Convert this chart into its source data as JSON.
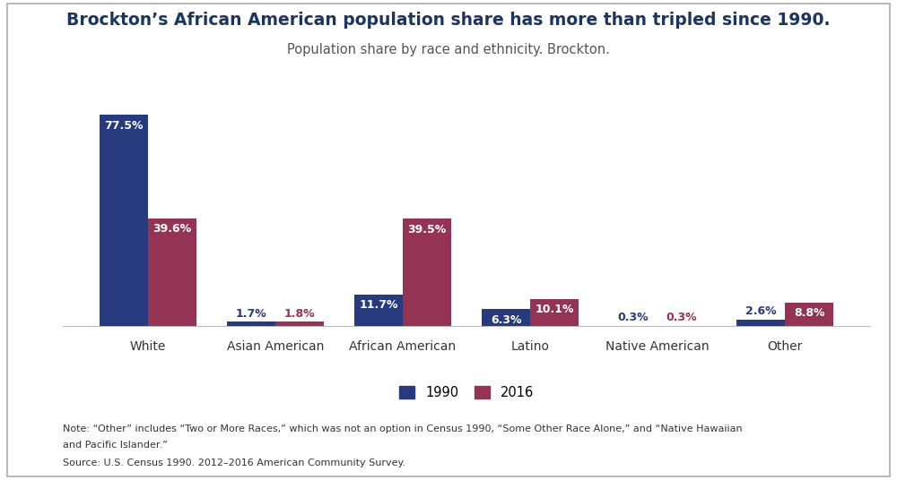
{
  "title": "Brockton’s African American population share has more than tripled since 1990.",
  "subtitle": "Population share by race and ethnicity. Brockton.",
  "categories": [
    "White",
    "Asian American",
    "African American",
    "Latino",
    "Native American",
    "Other"
  ],
  "values_1990": [
    77.5,
    1.7,
    11.7,
    6.3,
    0.3,
    2.6
  ],
  "values_2016": [
    39.6,
    1.8,
    39.5,
    10.1,
    0.3,
    8.8
  ],
  "color_1990": "#283a7e",
  "color_2016": "#943354",
  "ylim": [
    0,
    88
  ],
  "bar_width": 0.38,
  "legend_labels": [
    "1990",
    "2016"
  ],
  "note_line1": "Note: “Other” includes “Two or More Races,” which was not an option in Census 1990, “Some Other Race Alone,” and “Native Hawaiian",
  "note_line2": "and Pacific Islander.”",
  "source": "Source: U.S. Census 1990. 2012–2016 American Community Survey.",
  "title_color": "#1a3560",
  "subtitle_color": "#555555",
  "background_color": "#ffffff",
  "note_color": "#333333",
  "label_fontsize": 9.0,
  "title_fontsize": 13.5,
  "subtitle_fontsize": 10.5,
  "xticklabel_fontsize": 10.0,
  "threshold_inside": 5.0
}
